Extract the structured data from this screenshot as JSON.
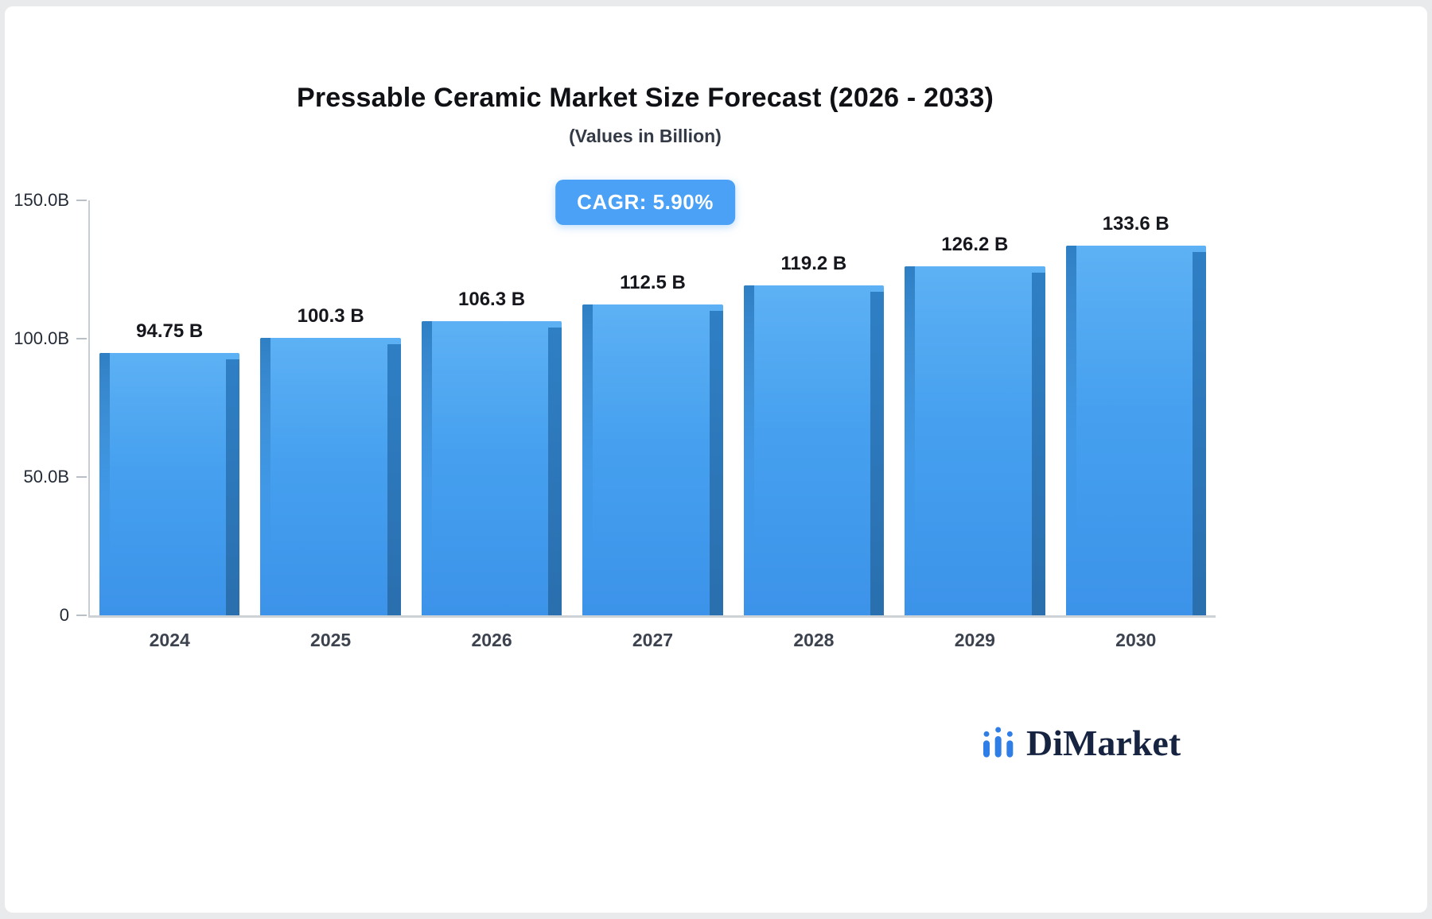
{
  "chart_data": {
    "type": "bar",
    "title": "Pressable Ceramic Market Size Forecast (2026 - 2033)",
    "subtitle": "(Values in Billion)",
    "badge_label": "CAGR: 5.90%",
    "categories": [
      "2024",
      "2025",
      "2026",
      "2027",
      "2028",
      "2029",
      "2030"
    ],
    "values": [
      94.75,
      100.3,
      106.3,
      112.5,
      119.2,
      126.2,
      133.6
    ],
    "value_labels": [
      "94.75 B",
      "100.3 B",
      "106.3 B",
      "112.5 B",
      "119.2 B",
      "126.2 B",
      "133.6 B"
    ],
    "xlabel": "",
    "ylabel": "",
    "ylim": [
      0,
      150
    ],
    "yticks": [
      {
        "label": "150.0B",
        "value": 150
      },
      {
        "label": "100.0B",
        "value": 100
      },
      {
        "label": "50.0B",
        "value": 50
      },
      {
        "label": "0",
        "value": 0
      }
    ],
    "grid": "off",
    "legend": "none",
    "colors": {
      "bar_top": "#5db1f4",
      "bar_bottom": "#3c93e9",
      "bar_edge": "#2f7fc5",
      "badge_bg": "#4ba1f6",
      "axis": "#c9ced4"
    }
  },
  "branding": {
    "name": "DiMarket",
    "icon": "dimarket-bars-icon",
    "icon_color": "#2f7de6"
  }
}
